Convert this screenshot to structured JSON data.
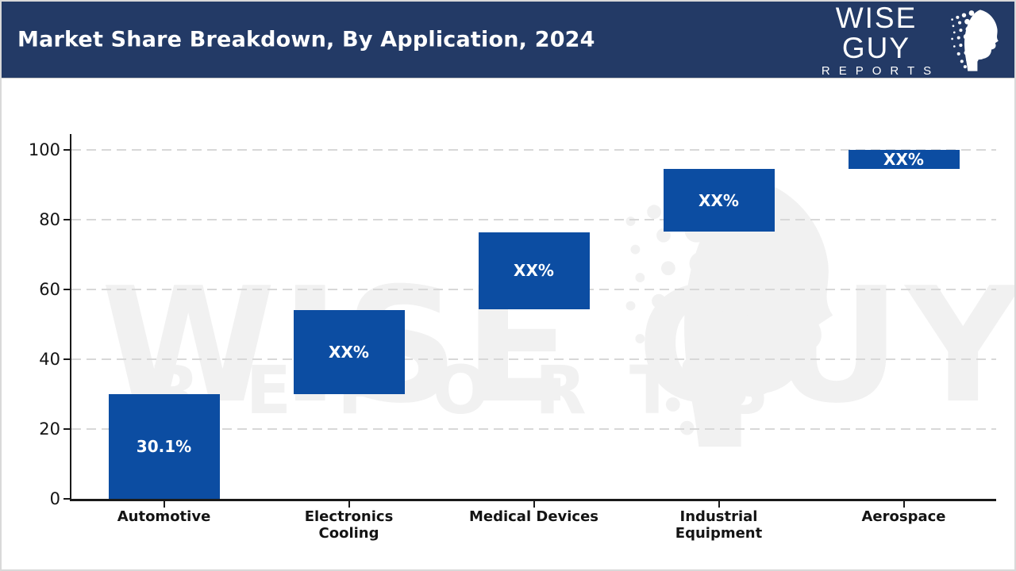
{
  "header": {
    "title": "Market Share Breakdown, By Application, 2024",
    "bg_color": "#233A66",
    "logo": {
      "line1": "WISE GUY",
      "line2": "REPORTS"
    }
  },
  "watermark": {
    "line1": "WISE GUY",
    "line2": "REPORTS"
  },
  "chart_data": {
    "type": "bar",
    "variant": "waterfall",
    "title": "Market Share Breakdown, By Application, 2024",
    "unit": "%",
    "ylim": [
      0,
      100
    ],
    "yticks": [
      0,
      20,
      40,
      60,
      80,
      100
    ],
    "grid": "horizontal-dashed",
    "bar_color": "#0C4DA2",
    "bar_label_color": "#ffffff",
    "categories": [
      {
        "name": "Automotive",
        "lines": [
          "Automotive"
        ]
      },
      {
        "name": "Electronics Cooling",
        "lines": [
          "Electronics",
          "Cooling"
        ]
      },
      {
        "name": "Medical Devices",
        "lines": [
          "Medical Devices"
        ]
      },
      {
        "name": "Industrial Equipment",
        "lines": [
          "Industrial",
          "Equipment"
        ]
      },
      {
        "name": "Aerospace",
        "lines": [
          "Aerospace"
        ]
      }
    ],
    "segments": [
      {
        "category": "Automotive",
        "start": 0,
        "end": 30.1,
        "value_label": "30.1%"
      },
      {
        "category": "Electronics Cooling",
        "start": 30.1,
        "end": 54.2,
        "value_label": "XX%"
      },
      {
        "category": "Medical Devices",
        "start": 54.4,
        "end": 76.3,
        "value_label": "XX%"
      },
      {
        "category": "Industrial Equipment",
        "start": 76.5,
        "end": 94.5,
        "value_label": "XX%"
      },
      {
        "category": "Aerospace",
        "start": 94.5,
        "end": 100,
        "value_label": "XX%"
      }
    ]
  }
}
